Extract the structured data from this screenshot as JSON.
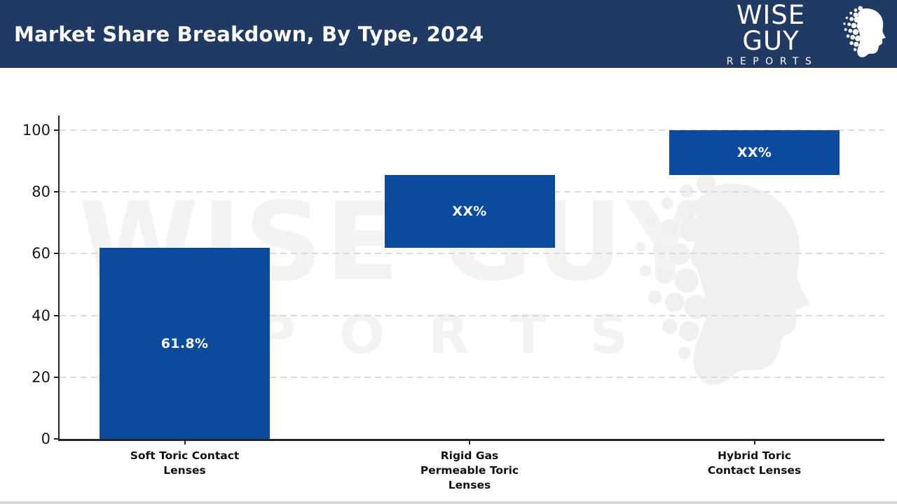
{
  "header": {
    "title": "Market Share Breakdown, By Type, 2024",
    "logo": {
      "wordmark": "WISE GUY",
      "subtext": "REPORTS"
    }
  },
  "watermark": {
    "wordmark": "WISE GUY",
    "subtext": "REPORTS"
  },
  "chart_data": {
    "type": "bar",
    "subtype": "floating-segment-waterfall",
    "title": "Market Share Breakdown, By Type, 2024",
    "xlabel": "",
    "ylabel": "",
    "ylim": [
      0,
      100
    ],
    "yticks": [
      0,
      20,
      40,
      60,
      80,
      100
    ],
    "grid": "horizontal dashed, light gray",
    "legend": "none",
    "categories": [
      "Soft Toric Contact\nLenses",
      "Rigid Gas\nPermeable Toric\nLenses",
      "Hybrid Toric\nContact Lenses"
    ],
    "segments": [
      {
        "category": "Soft Toric Contact Lenses",
        "start": 0,
        "end": 61.8,
        "label": "61.8%"
      },
      {
        "category": "Rigid Gas Permeable Toric Lenses",
        "start": 61.8,
        "end": 85.4,
        "label": "XX%"
      },
      {
        "category": "Hybrid Toric Contact Lenses",
        "start": 85.4,
        "end": 100,
        "label": "XX%"
      }
    ]
  },
  "colors": {
    "header_bg": "#213a64",
    "bar_fill": "#0b4a9c",
    "bar_label": "#ffffff",
    "axis": "#262626",
    "grid": "#dcdcdc",
    "watermark": "#f3f3f3",
    "footer_strip": "#d7d7d7"
  }
}
